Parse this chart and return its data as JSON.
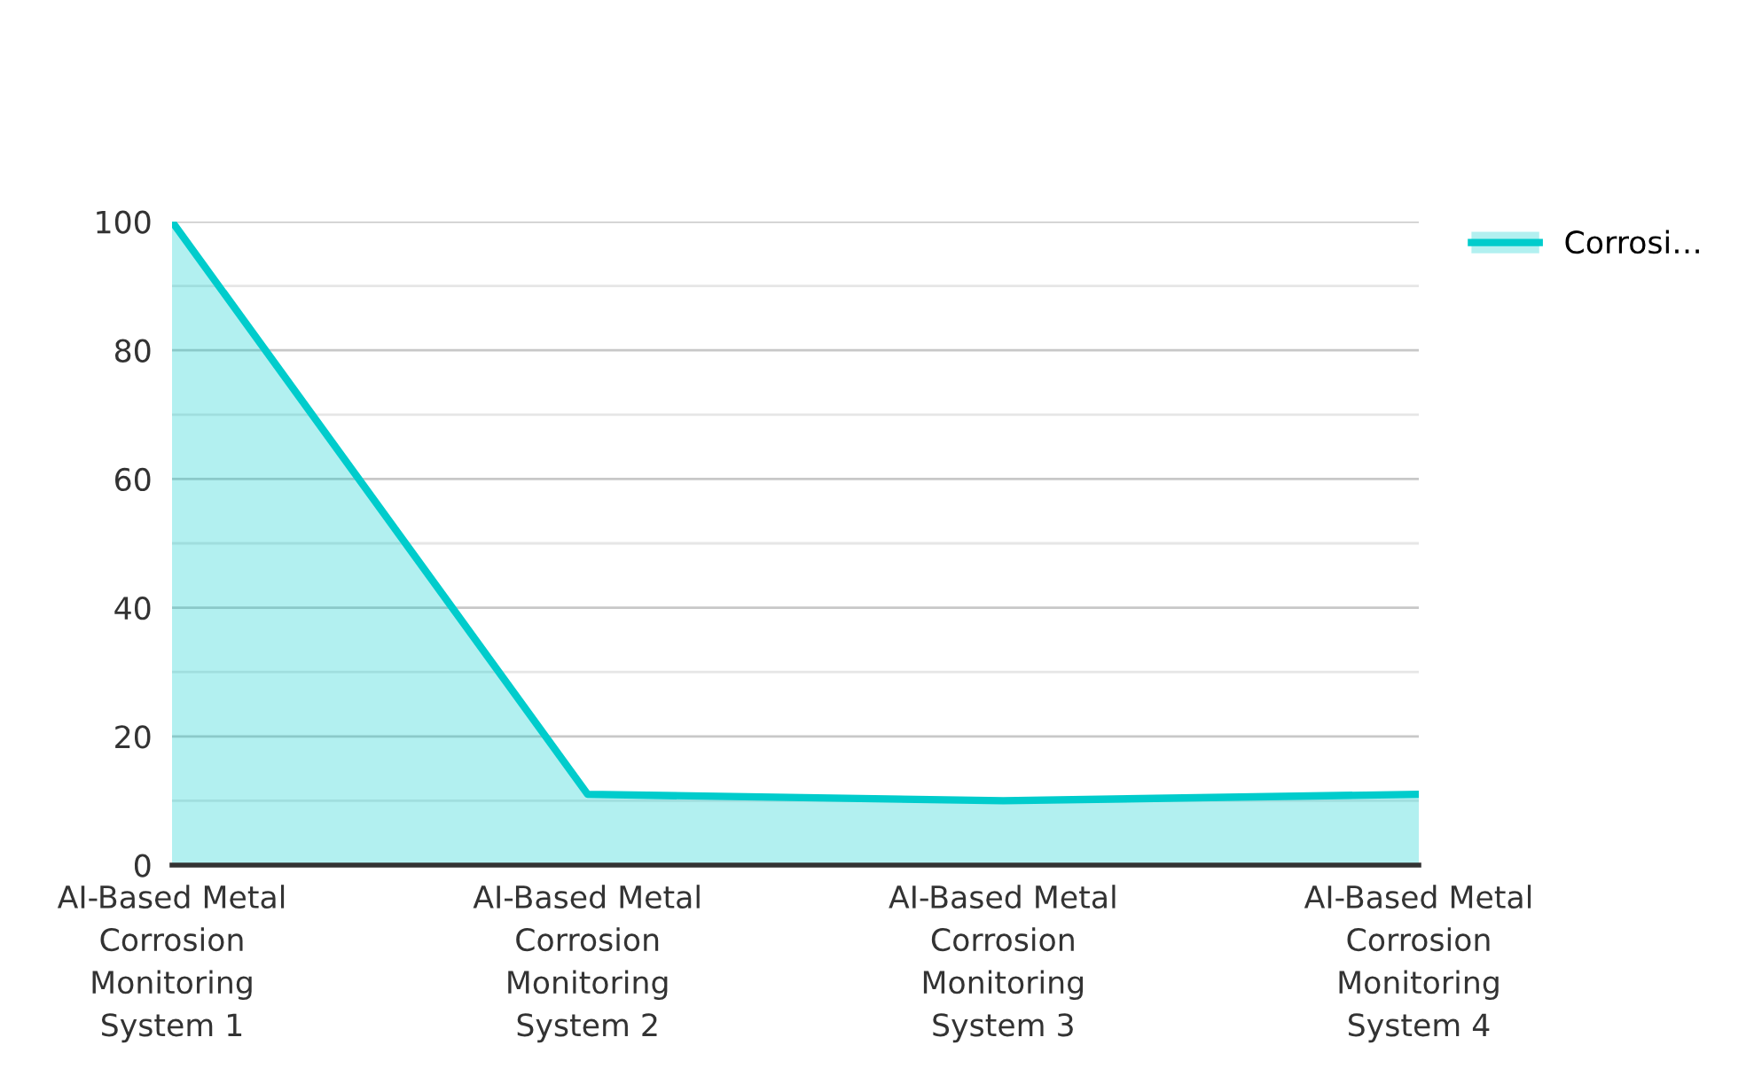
{
  "chart_data": {
    "type": "area",
    "categories": [
      "AI-Based Metal Corrosion Monitoring System 1",
      "AI-Based Metal Corrosion Monitoring System 2",
      "AI-Based Metal Corrosion Monitoring System 3",
      "AI-Based Metal Corrosion Monitoring System 4"
    ],
    "series": [
      {
        "name": "Corrosi…",
        "color": "#00cccc",
        "values": [
          100,
          11,
          10,
          11
        ]
      }
    ],
    "ylim": [
      0,
      100
    ],
    "yticks": [
      0,
      {
        "value": 10,
        "label": null
      },
      20,
      {
        "value": 30,
        "label": null
      },
      40,
      {
        "value": 50,
        "label": null
      },
      60,
      {
        "value": 70,
        "label": null
      },
      80,
      {
        "value": 90,
        "label": null
      },
      100
    ],
    "grid": "y",
    "legend": "top right"
  }
}
